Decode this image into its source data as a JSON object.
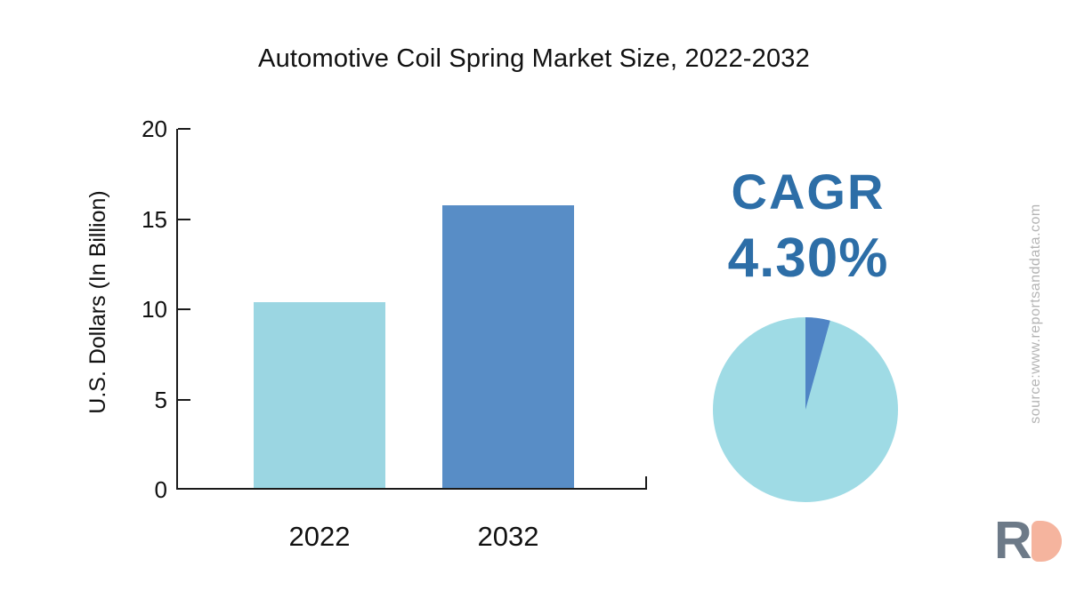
{
  "chart_data": {
    "type": "bar",
    "title": "Automotive Coil Spring Market Size, 2022-2032",
    "categories": [
      "2022",
      "2032"
    ],
    "values": [
      10.3,
      15.68
    ],
    "xlabel": "",
    "ylabel": "U.S. Dollars (In Billion)",
    "ylim": [
      0,
      20
    ],
    "yticks": [
      0,
      5,
      10,
      15,
      20
    ],
    "bar_colors": [
      "#9bd6e2",
      "#588dc6"
    ],
    "grid": false,
    "legend": "none"
  },
  "cagr": {
    "label": "CAGR",
    "value_text": "4.30%",
    "percent": 4.3,
    "color": "#2d6ea7"
  },
  "pie": {
    "type": "pie",
    "slices": [
      {
        "name": "cagr-wedge",
        "value": 4.3,
        "color": "#4f84c5"
      },
      {
        "name": "remainder",
        "value": 95.7,
        "color": "#9fdbe5"
      }
    ]
  },
  "source": {
    "text": "source:www.reportsanddata.com",
    "color": "#b4b4b4"
  },
  "logo": {
    "letter": "R",
    "letter_color": "#6d7a88",
    "mark_color": "#f5b49e"
  },
  "colors": {
    "background": "#ffffff",
    "axis": "#1a1a1a",
    "text": "#111111"
  }
}
